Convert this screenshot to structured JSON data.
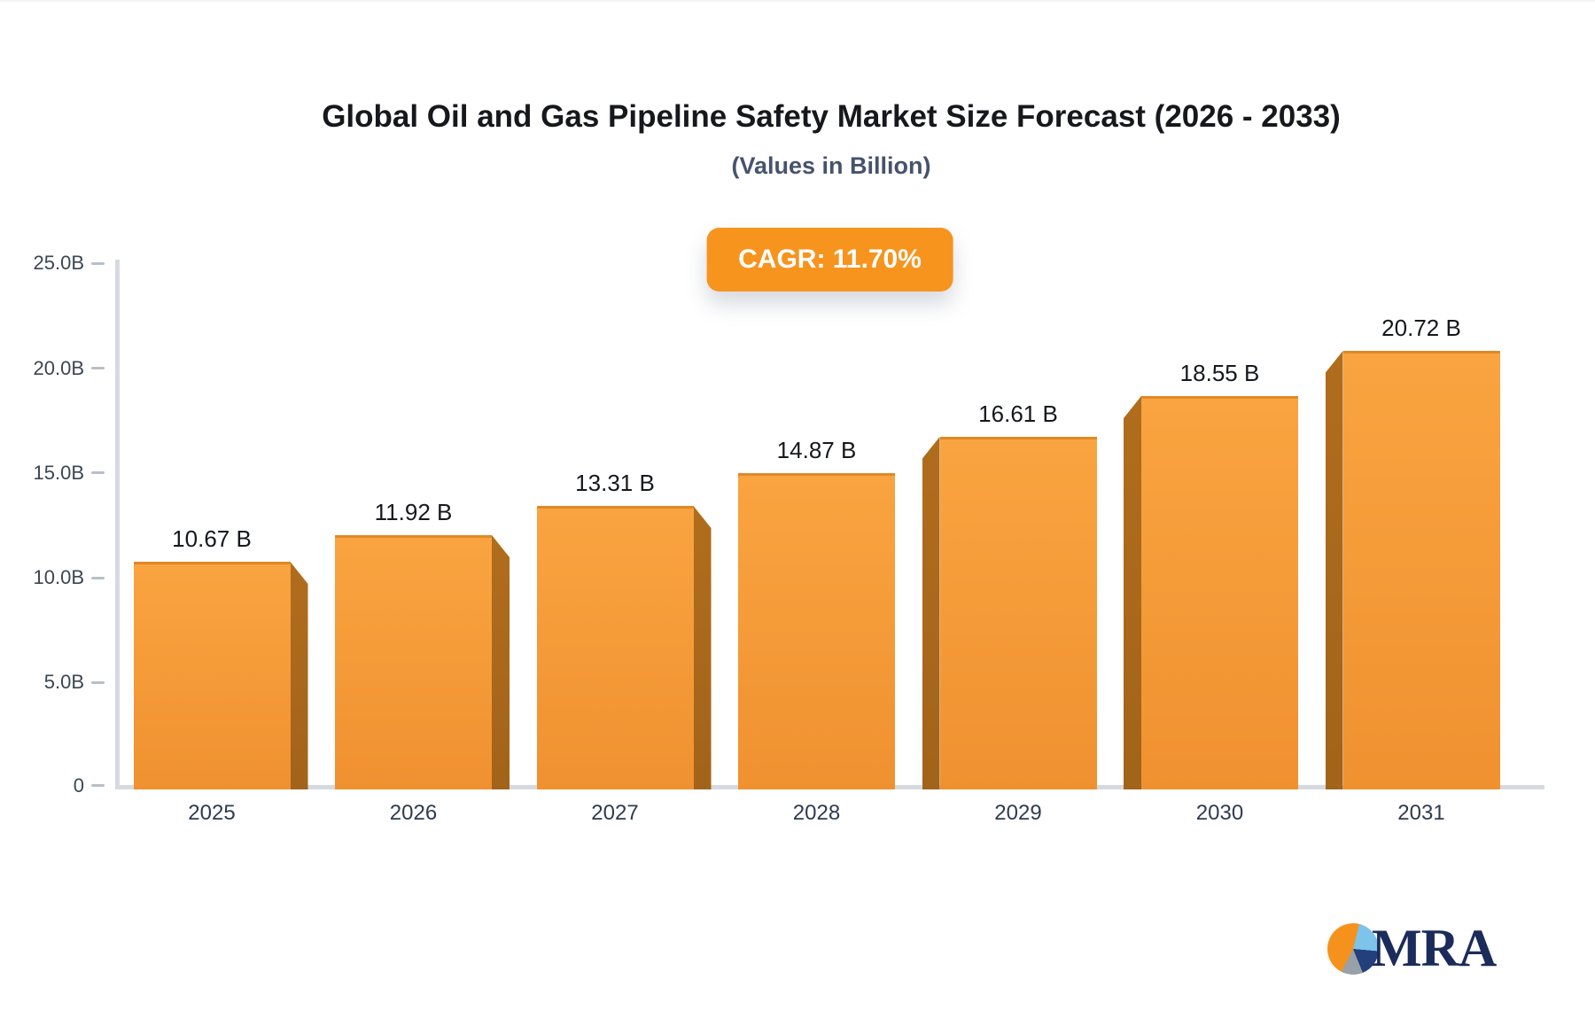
{
  "header": {
    "title": "Global Oil and Gas Pipeline Safety Market Size Forecast (2026 - 2033)",
    "subtitle": "(Values in Billion)",
    "cagr_label": "CAGR: 11.70%",
    "accent_color": "#F7941E"
  },
  "chart_data": {
    "type": "bar",
    "title": "Global Oil and Gas Pipeline Safety Market Size Forecast (2026 - 2033)",
    "subtitle": "(Values in Billion)",
    "cagr_percent": "11.70%",
    "categories": [
      "2025",
      "2026",
      "2027",
      "2028",
      "2029",
      "2030",
      "2031"
    ],
    "values": [
      10.67,
      11.92,
      13.31,
      14.87,
      16.61,
      18.55,
      20.72
    ],
    "value_labels": [
      "10.67 B",
      "11.92 B",
      "13.31 B",
      "14.87 B",
      "16.61 B",
      "18.55 B",
      "20.72 B"
    ],
    "unit": "Billion USD",
    "ylim": [
      0,
      25
    ],
    "ytick_values": [
      0,
      5,
      10,
      15,
      20,
      25
    ],
    "ytick_labels": [
      "0",
      "5.0B",
      "10.0B",
      "15.0B",
      "20.0B",
      "25.0B"
    ],
    "grid": "off",
    "legend": "none",
    "colors": {
      "bar_face_top": "#F9A440",
      "bar_face_bottom": "#F09130",
      "bar_side": "#B16D1D",
      "bar_top_edge": "#E08926",
      "axis_line": "#D6DAE0",
      "tick_dash": "#B9BFC7",
      "ytick_text": "#3B4654",
      "xtick_text": "#2F3B52",
      "value_text": "#15181D"
    }
  },
  "logo": {
    "text": "MRA",
    "text_color": "#1B2B5A",
    "pie_colors": {
      "orange": "#F5921E",
      "light_blue": "#7EC3EA",
      "navy": "#24407C",
      "gray": "#98A0A8"
    }
  }
}
